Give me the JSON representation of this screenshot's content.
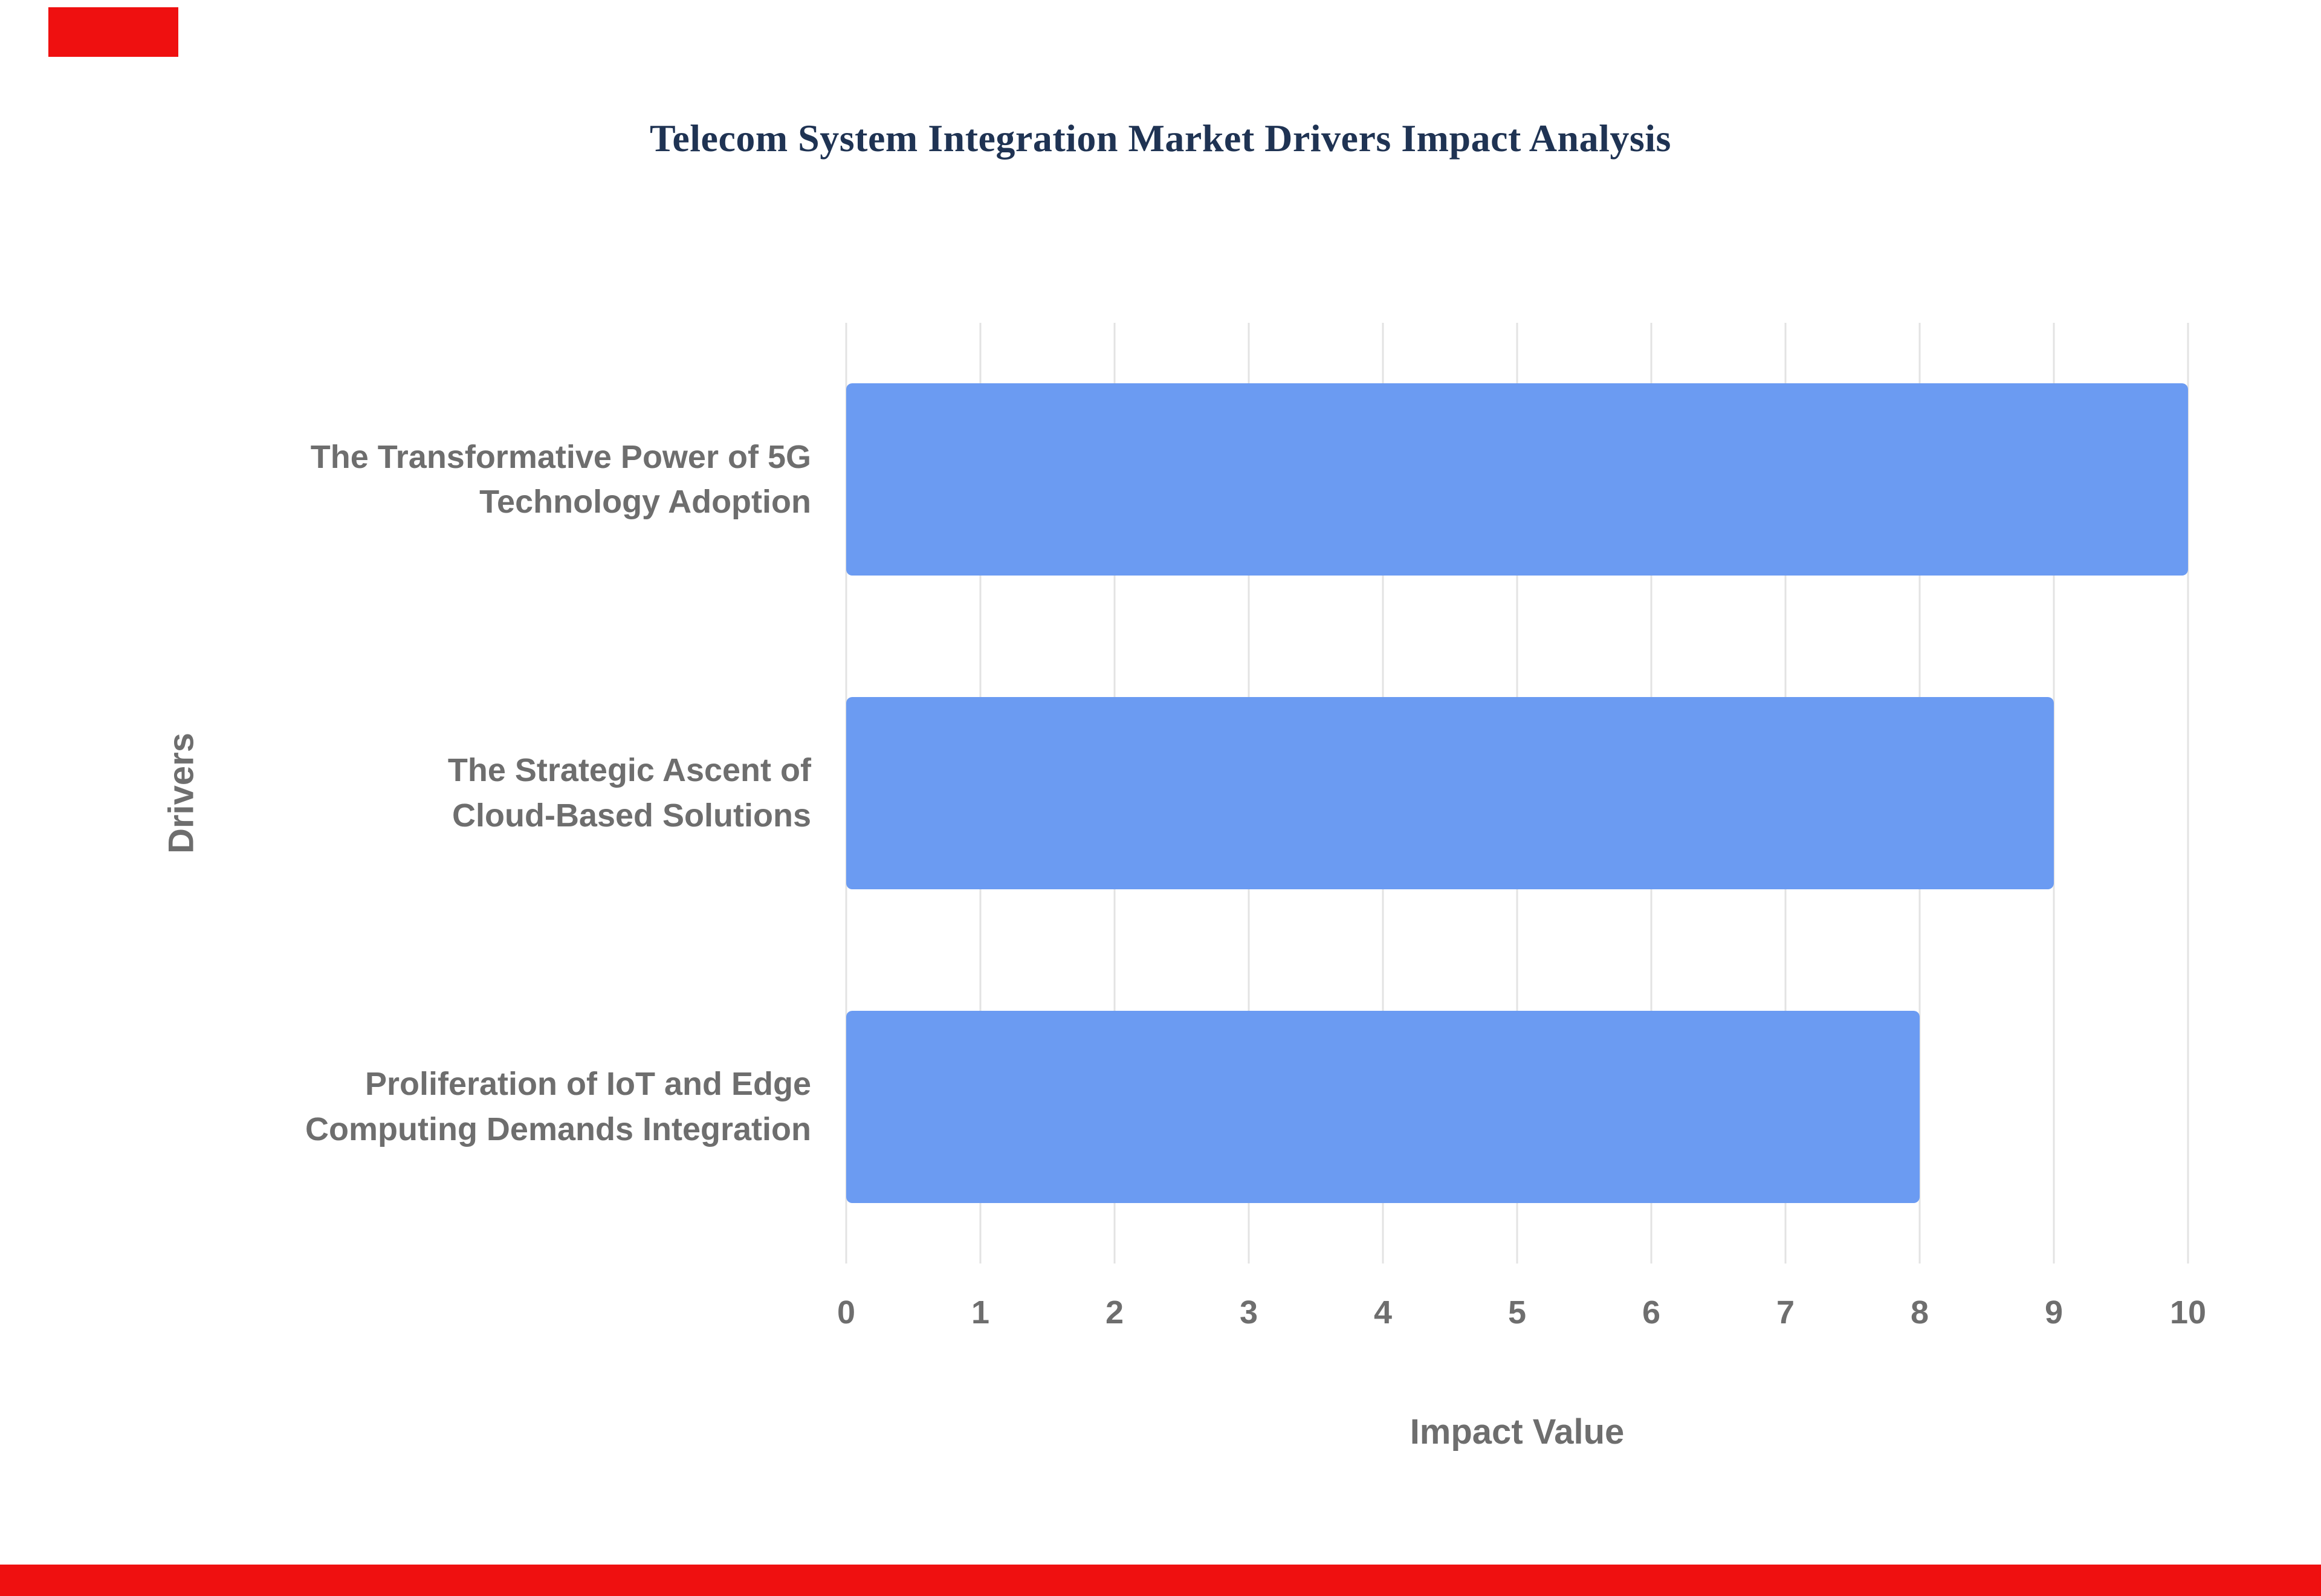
{
  "page": {
    "background": "#ffffff",
    "decorations": {
      "top_left_marker_color": "#ef1010",
      "bottom_bar_color": "#ef1010"
    }
  },
  "chart_data": {
    "type": "bar",
    "orientation": "horizontal",
    "title": "Telecom System Integration Market Drivers Impact Analysis",
    "title_color": "#1f3353",
    "xlabel": "Impact Value",
    "ylabel": "Drivers",
    "categories": [
      "The Transformative Power of 5G Technology Adoption",
      "The Strategic Ascent of Cloud-Based Solutions",
      "Proliferation of IoT and Edge Computing Demands Integration"
    ],
    "category_lines": [
      [
        "The Transformative Power of 5G",
        "Technology Adoption"
      ],
      [
        "The Strategic Ascent of",
        "Cloud-Based Solutions"
      ],
      [
        "Proliferation of IoT and Edge",
        "Computing Demands Integration"
      ]
    ],
    "values": [
      10,
      9,
      8
    ],
    "xlim": [
      0,
      10
    ],
    "xticks": [
      "0",
      "1",
      "2",
      "3",
      "4",
      "5",
      "6",
      "7",
      "8",
      "9",
      "10"
    ],
    "grid": true,
    "legend": "none",
    "bar_color": "#6b9bf2",
    "axis_text_color": "#6e6e6e",
    "gridline_color": "#e3e3e3"
  }
}
